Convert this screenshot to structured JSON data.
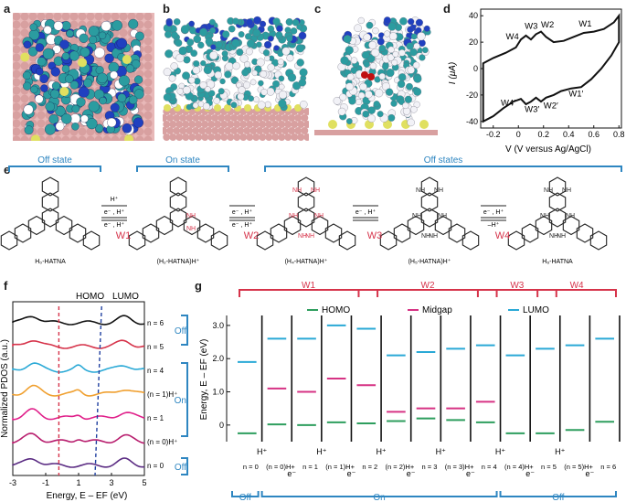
{
  "panels": {
    "a": "a",
    "b": "b",
    "c": "c",
    "d": "d",
    "e": "e",
    "f": "f",
    "g": "g"
  },
  "colors": {
    "blue": "#2e86c1",
    "red": "#d6334a",
    "green": "#2e9e5e",
    "magenta": "#d63384",
    "cyan": "#2aa9d6",
    "orange": "#f0a030",
    "purple": "#5b2c83",
    "surface": "#d8a0a0",
    "sulfur": "#e0e060",
    "carbon": "#2b9ca0",
    "nitrogen": "#2040c0"
  },
  "panel_d": {
    "xlabel": "V (V versus Ag/AgCl)",
    "ylabel": "I (μA)",
    "xticks": [
      "-0.2",
      "0",
      "0.2",
      "0.4",
      "0.6",
      "0.8"
    ],
    "yticks": [
      "-40",
      "-20",
      "0",
      "20",
      "40"
    ],
    "peak_labels": {
      "W1": "W1",
      "W2": "W2",
      "W3": "W3",
      "W4": "W4",
      "W1p": "W1′",
      "W2p": "W2′",
      "W3p": "W3′",
      "W4p": "W4′"
    }
  },
  "chart_data": [
    {
      "type": "line",
      "panel": "d",
      "xlabel": "V (V versus Ag/AgCl)",
      "ylabel": "I (μA)",
      "xlim": [
        -0.3,
        0.82
      ],
      "ylim": [
        -45,
        45
      ],
      "series": [
        {
          "x": [
            -0.28,
            -0.2,
            -0.1,
            -0.02,
            0.02,
            0.06,
            0.1,
            0.14,
            0.18,
            0.22,
            0.28,
            0.36,
            0.44,
            0.52,
            0.6,
            0.68,
            0.76,
            0.8
          ],
          "y": [
            4,
            8,
            12,
            16,
            22,
            25,
            22,
            26,
            28,
            24,
            20,
            21,
            24,
            27,
            28,
            30,
            35,
            40
          ]
        },
        {
          "x": [
            0.8,
            0.74,
            0.66,
            0.58,
            0.5,
            0.42,
            0.34,
            0.28,
            0.22,
            0.18,
            0.14,
            0.1,
            0.06,
            0.02,
            -0.04,
            -0.12,
            -0.2,
            -0.28
          ],
          "y": [
            20,
            10,
            0,
            -8,
            -14,
            -15,
            -17,
            -20,
            -22,
            -25,
            -22,
            -25,
            -27,
            -23,
            -25,
            -30,
            -36,
            -40
          ]
        }
      ]
    },
    {
      "type": "line",
      "panel": "f",
      "xlabel": "Energy, E – EF (eV)",
      "ylabel": "Normalized PDOS (a.u.)",
      "xlim": [
        -3,
        5
      ],
      "xticks": [
        "-3",
        "-1",
        "1",
        "3",
        "5"
      ],
      "series": [
        {
          "name": "n = 6"
        },
        {
          "name": "n = 5"
        },
        {
          "name": "n = 4"
        },
        {
          "name": "(n = 1)H+"
        },
        {
          "name": "n = 1"
        },
        {
          "name": "(n = 0)H+"
        },
        {
          "name": "n = 0"
        }
      ]
    },
    {
      "type": "scatter",
      "panel": "g",
      "ylabel": "Energy, E – EF (eV)",
      "ylim": [
        -0.5,
        3.3
      ],
      "yticks": [
        "0",
        "1.0",
        "2.0",
        "3.0"
      ],
      "categories": [
        "n = 0",
        "(n = 0)H+",
        "n = 1",
        "(n = 1)H+",
        "n = 2",
        "(n = 2)H+",
        "n = 3",
        "(n = 3)H+",
        "n = 4",
        "(n = 4)H+",
        "n = 5",
        "(n = 5)H+",
        "n = 6"
      ],
      "series": [
        {
          "name": "HOMO",
          "values": [
            -0.25,
            0.02,
            0.0,
            0.08,
            0.05,
            0.12,
            0.2,
            0.15,
            0.08,
            -0.25,
            -0.25,
            -0.15,
            0.1
          ]
        },
        {
          "name": "Midgap",
          "values": [
            null,
            1.1,
            1.0,
            1.4,
            1.2,
            0.4,
            0.5,
            0.5,
            0.7,
            null,
            null,
            null,
            null
          ]
        },
        {
          "name": "LUMO",
          "values": [
            1.9,
            2.6,
            2.6,
            3.0,
            2.9,
            2.1,
            2.2,
            2.3,
            2.4,
            2.1,
            2.3,
            2.4,
            2.6
          ]
        }
      ]
    }
  ],
  "panel_e": {
    "states": {
      "off1": "Off state",
      "on": "On state",
      "off2": "Off states"
    },
    "molecules": [
      "H₀-HATNA",
      "(H₂-HATNA)H⁺",
      "(H₄-HATNA)H⁺",
      "(H₅-HATNA)H⁺",
      "H₆-HATNA"
    ],
    "arrows": [
      {
        "top": "H⁺",
        "mid": "e⁻ , H⁺",
        "bot": "e⁻ , H⁺",
        "w": "W1"
      },
      {
        "top": "",
        "mid": "e⁻ , H⁺",
        "bot": "e⁻ , H⁺",
        "w": "W2"
      },
      {
        "top": "",
        "mid": "e⁻ , H⁺",
        "bot": "",
        "w": "W3"
      },
      {
        "top": "",
        "mid": "e⁻ , H⁺",
        "bot": "–H⁺",
        "w": "W4"
      }
    ]
  },
  "panel_f": {
    "homo": "HOMO",
    "lumo": "LUMO",
    "labels": [
      "n = 6",
      "n = 5",
      "n = 4",
      "(n = 1)H⁺",
      "n = 1",
      "(n = 0)H⁺",
      "n = 0"
    ],
    "groups": {
      "off1": "Off",
      "on": "On",
      "off2": "Off"
    }
  },
  "panel_g": {
    "windows": [
      "W1",
      "W2",
      "W3",
      "W4"
    ],
    "legend": {
      "homo": "HOMO",
      "midgap": "Midgap",
      "lumo": "LUMO"
    },
    "groups": {
      "off1": "Off",
      "on": "On",
      "off2": "Off"
    },
    "hplus": "H⁺",
    "eminus": "e⁻"
  }
}
